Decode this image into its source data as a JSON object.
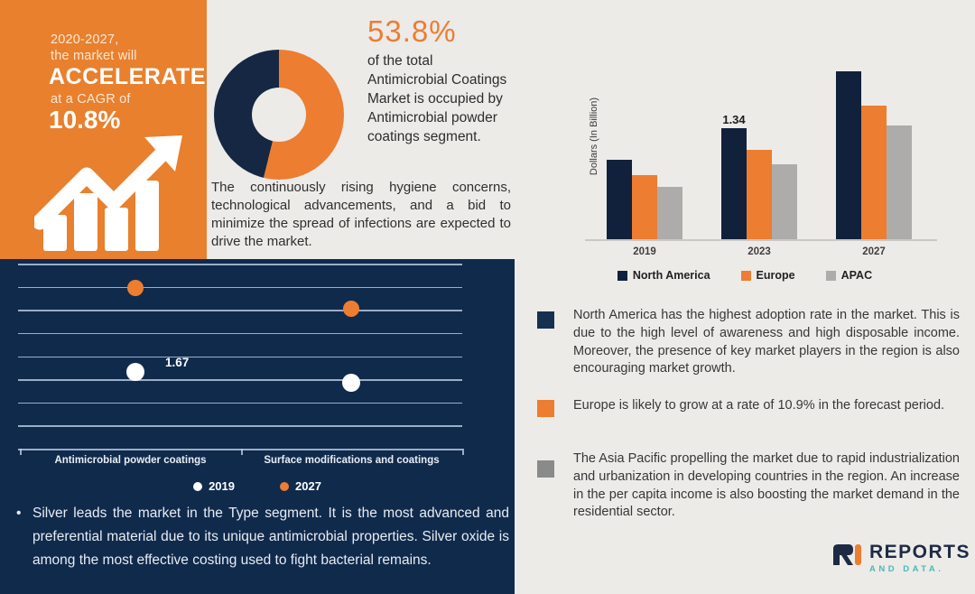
{
  "colors": {
    "accent_orange": "#ED7D31",
    "box_orange": "#E8802E",
    "navy_dark_bar": "#11213C",
    "navy_section_bg": "#102A4C",
    "navy_bullet": "#16304F",
    "gray_bar": "#ADACAA",
    "gray_bullet": "#8A8A8A",
    "panel_bg": "#ECEBE8",
    "logo_teal": "#49B8BA",
    "dot_white": "#FFFFFF"
  },
  "orange_box": {
    "line1": "2020-2027,",
    "line2": "the market will",
    "line3": "ACCELERATE",
    "line4": "at a CAGR of",
    "line5": "10.8%"
  },
  "donut_section": {
    "stat_value": "53.8%",
    "stat_description": "of the total Antimicrobial Coatings Market is occupied by Antimicrobial powder coatings segment.",
    "paragraph": "The continuously rising hygiene concerns, technological advancements, and a bid to minimize the spread of infections are expected to drive the market."
  },
  "silver_note": {
    "bullet": "•",
    "text": "Silver leads the market in the Type segment. It is the most advanced and preferential material due to its unique antimicrobial properties. Silver oxide is among the most effective costing used to fight bacterial remains."
  },
  "right_bullets": [
    {
      "marker": "navy",
      "text": "North America has the highest adoption rate in the market. This is due to the high level of awareness and high disposable income. Moreover, the presence of key market players in the region is also encouraging market growth."
    },
    {
      "marker": "orange",
      "text": "Europe is likely to grow at a rate of 10.9% in the forecast period."
    },
    {
      "marker": "gray",
      "text": "The Asia Pacific propelling the market due to rapid industrialization and urbanization in developing countries in the region. An increase in the per capita income is also boosting the market demand in the residential sector."
    }
  ],
  "logo": {
    "name": "REPORTS",
    "subtitle": "AND DATA."
  },
  "chart_data": [
    {
      "type": "bar",
      "title": "",
      "ylabel": "Dollars (In Billion)",
      "xlabel": "",
      "categories": [
        "2019",
        "2023",
        "2027"
      ],
      "series": [
        {
          "name": "North America",
          "color": "#11213C",
          "values": [
            0.96,
            1.34,
            2.02
          ]
        },
        {
          "name": "Europe",
          "color": "#ED7D31",
          "values": [
            0.77,
            1.08,
            1.61
          ]
        },
        {
          "name": "APAC",
          "color": "#ADACAA",
          "values": [
            0.63,
            0.9,
            1.37
          ]
        }
      ],
      "data_labels": [
        {
          "series": "North America",
          "category": "2023",
          "text": "1.34"
        }
      ],
      "ylim": [
        0,
        2.3
      ],
      "grid": false,
      "legend_position": "bottom"
    },
    {
      "type": "scatter",
      "title": "",
      "ylabel": "",
      "categories": [
        "Antimicrobial powder coatings",
        "Surface modifications and coatings"
      ],
      "series": [
        {
          "name": "2019",
          "color": "#FFFFFF",
          "values": [
            1.67,
            1.43
          ]
        },
        {
          "name": "2027",
          "color": "#ED7D31",
          "values": [
            3.5,
            3.05
          ]
        }
      ],
      "data_labels": [
        {
          "series": "2019",
          "category": "Antimicrobial powder coatings",
          "text": "1.67"
        }
      ],
      "ylim": [
        0,
        4.13
      ],
      "grid": true,
      "gridline_count": 9,
      "legend_position": "bottom"
    }
  ]
}
